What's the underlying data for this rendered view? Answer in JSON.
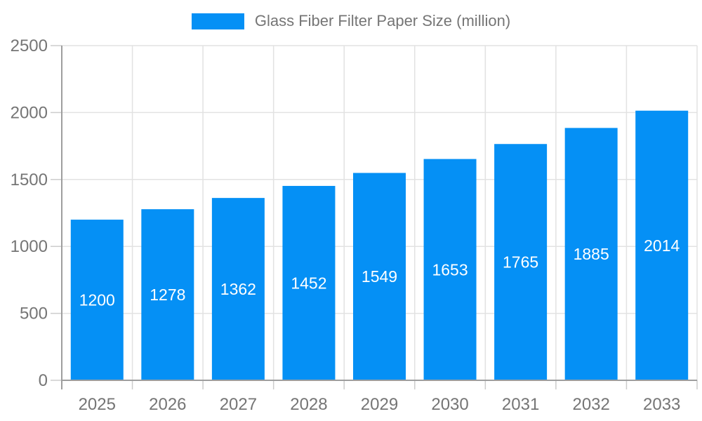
{
  "chart_data": {
    "type": "bar",
    "title": "Glass Fiber Filter Paper Size (million)",
    "categories": [
      "2025",
      "2026",
      "2027",
      "2028",
      "2029",
      "2030",
      "2031",
      "2032",
      "2033"
    ],
    "series": [
      {
        "name": "Glass Fiber Filter Paper Size (million)",
        "values": [
          1200,
          1278,
          1362,
          1452,
          1549,
          1653,
          1765,
          1885,
          2014
        ]
      }
    ],
    "xlabel": "",
    "ylabel": "",
    "ylim": [
      0,
      2500
    ],
    "yticks": [
      0,
      500,
      1000,
      1500,
      2000,
      2500
    ],
    "grid": true,
    "legend_position": "top",
    "value_labels": "centered-inside-bars",
    "colors": {
      "bar": "#0590F5",
      "grid": "#e2e2e2",
      "tick": "#cccccc",
      "axis": "#9e9e9e",
      "axis_text": "#757575",
      "value_label": "#ffffff",
      "background": "#ffffff"
    }
  }
}
